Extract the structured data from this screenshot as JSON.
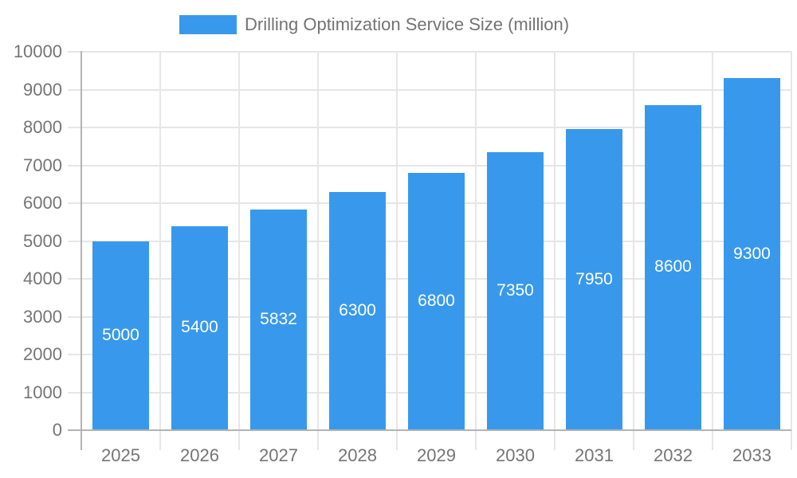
{
  "chart_data": {
    "type": "bar",
    "title": "",
    "xlabel": "",
    "ylabel": "",
    "legend": {
      "position": "top",
      "swatch_icon": "legend-color-swatch"
    },
    "categories": [
      "2025",
      "2026",
      "2027",
      "2028",
      "2029",
      "2030",
      "2031",
      "2032",
      "2033"
    ],
    "series": [
      {
        "name": "Drilling Optimization Service Size (million)",
        "values": [
          5000,
          5400,
          5832,
          6300,
          6800,
          7350,
          7950,
          8600,
          9300
        ]
      }
    ],
    "bar_labels": [
      5000,
      5400,
      5832,
      6300,
      6800,
      7350,
      7950,
      8600,
      9300
    ],
    "ytick_labels": [
      "0",
      "1000",
      "2000",
      "3000",
      "4000",
      "5000",
      "6000",
      "7000",
      "8000",
      "9000",
      "10000"
    ],
    "ylim": [
      0,
      10000
    ],
    "ytick_step": 1000,
    "grid": true,
    "colors": {
      "bar": "#3899ec",
      "bar_label_text": "#ffffff",
      "axis_line": "#b3b3b3",
      "gridline": "#e6e6e6",
      "tick_label_text": "#757575",
      "legend_text": "#737373",
      "background": "#ffffff"
    }
  }
}
